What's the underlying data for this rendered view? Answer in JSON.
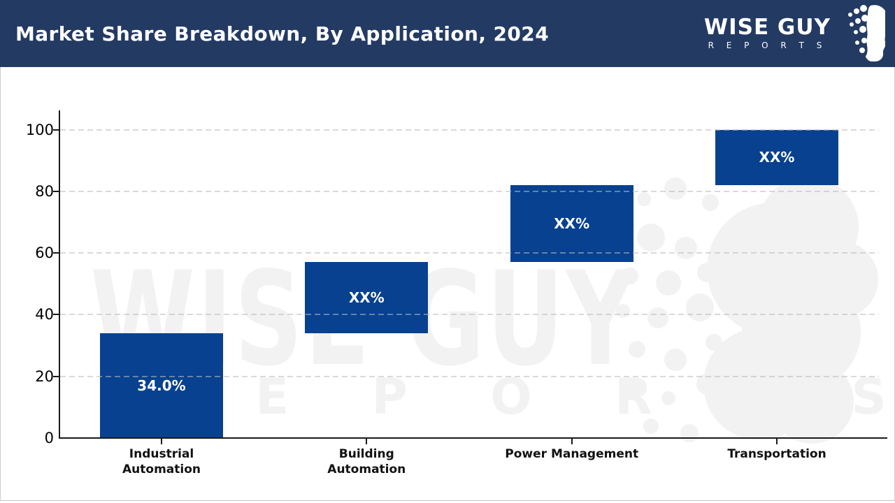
{
  "header": {
    "title": "Market Share Breakdown, By Application, 2024",
    "logo": {
      "line1": "WISE GUY",
      "line2": "R E P O R T S"
    }
  },
  "watermark": {
    "line1": "WISE GUY",
    "line2": "R E P O R T S"
  },
  "colors": {
    "header_bg": "#233a63",
    "bar_blue": "#07418f",
    "grid_gray": "#dedede",
    "axis_black": "#1a1a1a",
    "bar_label_white": "#ffffff",
    "watermark_gray": "#f2f2f2"
  },
  "chart_data": {
    "type": "bar",
    "subtype": "waterfall",
    "title": "Market Share Breakdown, By Application, 2024",
    "categories": [
      "Industrial Automation",
      "Building Automation",
      "Power Management",
      "Transportation"
    ],
    "category_label_lines": [
      [
        "Industrial",
        "Automation"
      ],
      [
        "Building",
        "Automation"
      ],
      [
        "Power Management"
      ],
      [
        "Transportation"
      ]
    ],
    "bar_value_labels": [
      "34.0%",
      "XX%",
      "XX%",
      "XX%"
    ],
    "segment_start_values": [
      0,
      34,
      57,
      82
    ],
    "segment_end_values": [
      34,
      57,
      82,
      100
    ],
    "segment_sizes": [
      34,
      23,
      25,
      18
    ],
    "yticks": [
      0,
      20,
      40,
      60,
      80,
      100
    ],
    "ylim": [
      0,
      106
    ],
    "xlabel": "",
    "ylabel": "",
    "grid": "horizontal-dashed",
    "legend": "none",
    "bar_color": "#07418f"
  }
}
